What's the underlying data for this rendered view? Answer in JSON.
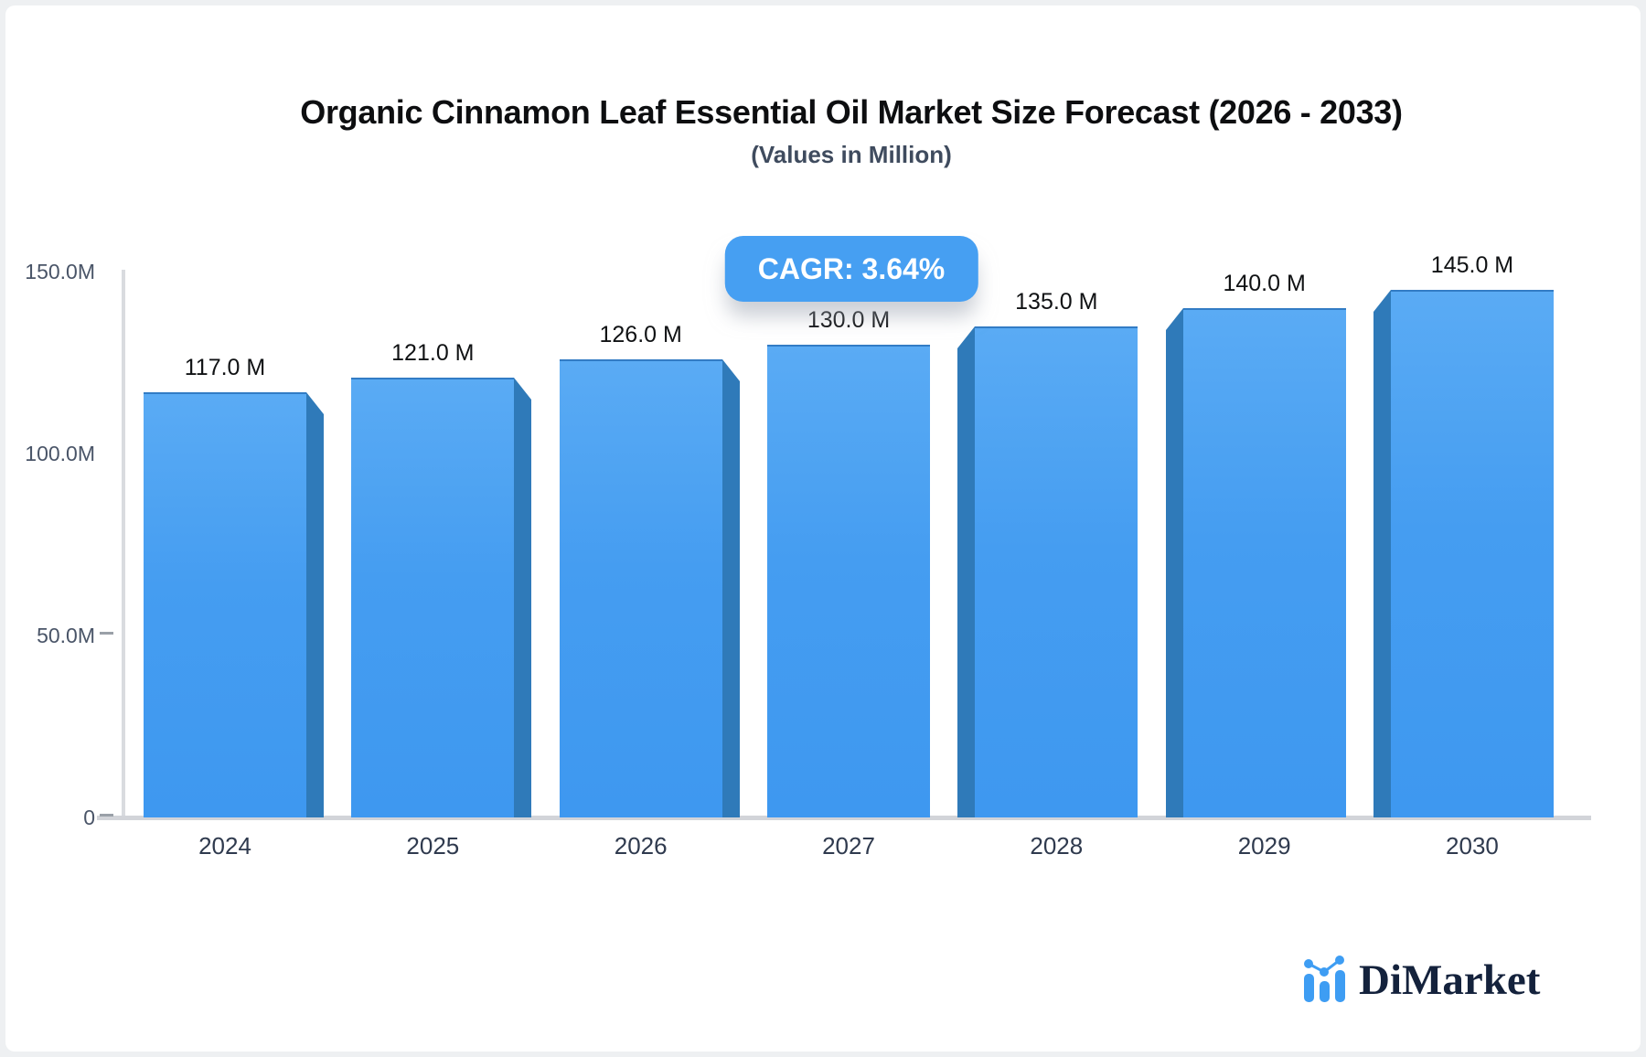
{
  "header": {
    "title": "Organic Cinnamon Leaf Essential Oil Market Size Forecast (2026 - 2033)",
    "subtitle": "(Values in Million)"
  },
  "badge": {
    "label": "CAGR: 3.64%",
    "background": "#469ff2",
    "text_color": "#ffffff"
  },
  "chart_data": {
    "type": "bar",
    "title": "Organic Cinnamon Leaf Essential Oil Market Size Forecast (2026 - 2033)",
    "subtitle": "(Values in Million)",
    "categories": [
      "2024",
      "2025",
      "2026",
      "2027",
      "2028",
      "2029",
      "2030"
    ],
    "values": [
      117,
      121,
      126,
      130,
      135,
      140,
      145
    ],
    "value_labels": [
      "117.0 M",
      "121.0 M",
      "126.0 M",
      "130.0 M",
      "135.0 M",
      "140.0 M",
      "145.0 M"
    ],
    "cagr_label": "CAGR: 3.64%",
    "xlabel": "",
    "ylabel": "",
    "ylim": [
      0,
      150
    ],
    "yticks": [
      {
        "value": 150,
        "label": "150.0M",
        "dash": false
      },
      {
        "value": 100,
        "label": "100.0M",
        "dash": false
      },
      {
        "value": 50,
        "label": "50.0M",
        "dash": true
      },
      {
        "value": 0,
        "label": "0",
        "dash": true
      }
    ],
    "grid": false,
    "legend": false,
    "colors": {
      "bar_top": "#5aabf4",
      "bar_mid": "#459df1",
      "bar_bottom": "#3e98f0",
      "bar_side": "#2f7ab9",
      "axis_line": "#d9dbdf"
    }
  },
  "logo": {
    "text": "DiMarket",
    "icon": "bar-chart-trend-icon",
    "icon_color": "#3e9df3",
    "text_color": "#14223c"
  }
}
